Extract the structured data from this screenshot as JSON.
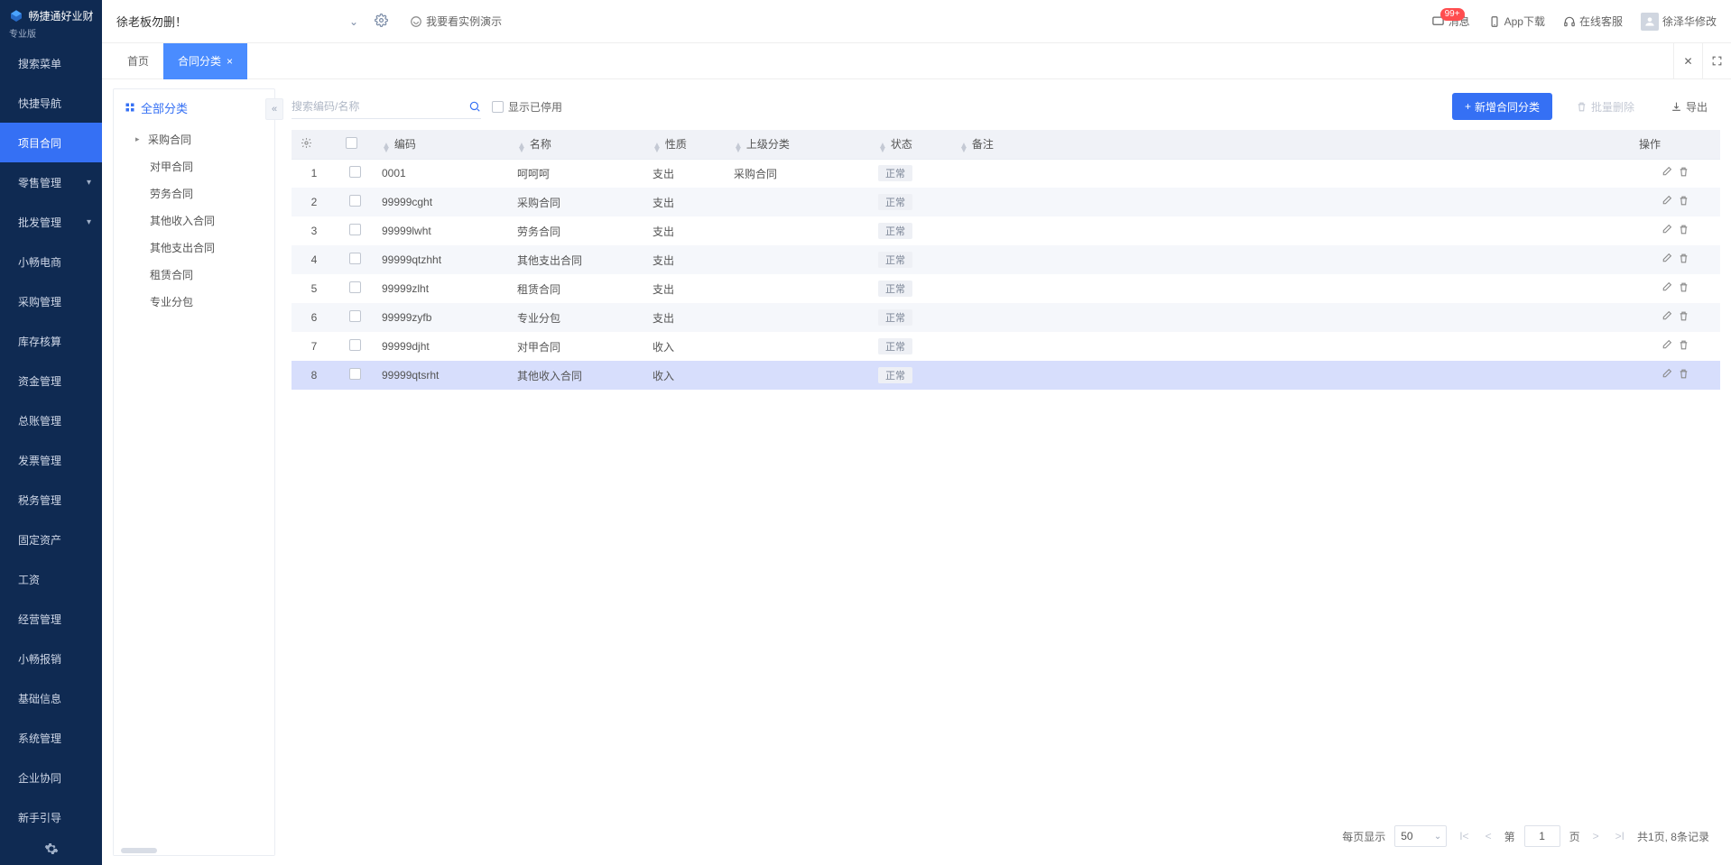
{
  "brand": {
    "name": "畅捷通好业财",
    "edition": "专业版"
  },
  "sidebar": {
    "items": [
      {
        "label": "搜索菜单",
        "hasCaret": false
      },
      {
        "label": "快捷导航",
        "hasCaret": false
      },
      {
        "label": "项目合同",
        "hasCaret": false,
        "active": true
      },
      {
        "label": "零售管理",
        "hasCaret": true
      },
      {
        "label": "批发管理",
        "hasCaret": true
      },
      {
        "label": "小畅电商",
        "hasCaret": false
      },
      {
        "label": "采购管理",
        "hasCaret": false
      },
      {
        "label": "库存核算",
        "hasCaret": false
      },
      {
        "label": "资金管理",
        "hasCaret": false
      },
      {
        "label": "总账管理",
        "hasCaret": false
      },
      {
        "label": "发票管理",
        "hasCaret": false
      },
      {
        "label": "税务管理",
        "hasCaret": false
      },
      {
        "label": "固定资产",
        "hasCaret": false
      },
      {
        "label": "工资",
        "hasCaret": false
      },
      {
        "label": "经营管理",
        "hasCaret": false
      },
      {
        "label": "小畅报销",
        "hasCaret": false
      },
      {
        "label": "基础信息",
        "hasCaret": false
      },
      {
        "label": "系统管理",
        "hasCaret": false
      },
      {
        "label": "企业协同",
        "hasCaret": false
      },
      {
        "label": "新手引导",
        "hasCaret": false
      }
    ]
  },
  "topbar": {
    "org": "徐老板勿删！",
    "demo": "我要看实例演示",
    "badge": "99+",
    "msg": "消息",
    "download": "App下载",
    "service": "在线客服",
    "user": "徐泽华修改"
  },
  "tabs": {
    "items": [
      {
        "label": "首页",
        "closable": false
      },
      {
        "label": "合同分类",
        "closable": true,
        "active": true
      }
    ]
  },
  "tree": {
    "rootLabel": "全部分类",
    "items": [
      {
        "label": "采购合同",
        "expandable": true
      },
      {
        "label": "对甲合同",
        "child": true
      },
      {
        "label": "劳务合同",
        "child": true
      },
      {
        "label": "其他收入合同",
        "child": true
      },
      {
        "label": "其他支出合同",
        "child": true
      },
      {
        "label": "租赁合同",
        "child": true
      },
      {
        "label": "专业分包",
        "child": true
      }
    ]
  },
  "toolbar": {
    "searchPlaceholder": "搜索编码/名称",
    "showDisabled": "显示已停用",
    "addBtn": "新增合同分类",
    "batchDelete": "批量删除",
    "export": "导出"
  },
  "table": {
    "columns": {
      "code": "编码",
      "name": "名称",
      "nature": "性质",
      "parent": "上级分类",
      "status": "状态",
      "remark": "备注",
      "ops": "操作"
    },
    "rows": [
      {
        "idx": "1",
        "code": "0001",
        "name": "呵呵呵",
        "nature": "支出",
        "parent": "采购合同",
        "status": "正常"
      },
      {
        "idx": "2",
        "code": "99999cght",
        "name": "采购合同",
        "nature": "支出",
        "parent": "",
        "status": "正常"
      },
      {
        "idx": "3",
        "code": "99999lwht",
        "name": "劳务合同",
        "nature": "支出",
        "parent": "",
        "status": "正常"
      },
      {
        "idx": "4",
        "code": "99999qtzhht",
        "name": "其他支出合同",
        "nature": "支出",
        "parent": "",
        "status": "正常"
      },
      {
        "idx": "5",
        "code": "99999zlht",
        "name": "租赁合同",
        "nature": "支出",
        "parent": "",
        "status": "正常"
      },
      {
        "idx": "6",
        "code": "99999zyfb",
        "name": "专业分包",
        "nature": "支出",
        "parent": "",
        "status": "正常"
      },
      {
        "idx": "7",
        "code": "99999djht",
        "name": "对甲合同",
        "nature": "收入",
        "parent": "",
        "status": "正常"
      },
      {
        "idx": "8",
        "code": "99999qtsrht",
        "name": "其他收入合同",
        "nature": "收入",
        "parent": "",
        "status": "正常",
        "selected": true
      }
    ]
  },
  "pager": {
    "perPageLabel": "每页显示",
    "perPage": "50",
    "pagePrefix": "第",
    "page": "1",
    "pageSuffix": "页",
    "summary": "共1页, 8条记录"
  },
  "colors": {
    "sidebarBg": "#0f2a52",
    "primary": "#3570f4",
    "tabActive": "#4a8cff",
    "badge": "#ff4d4f",
    "tagBg": "#eef0f5",
    "selectedRow": "#d7defc"
  }
}
